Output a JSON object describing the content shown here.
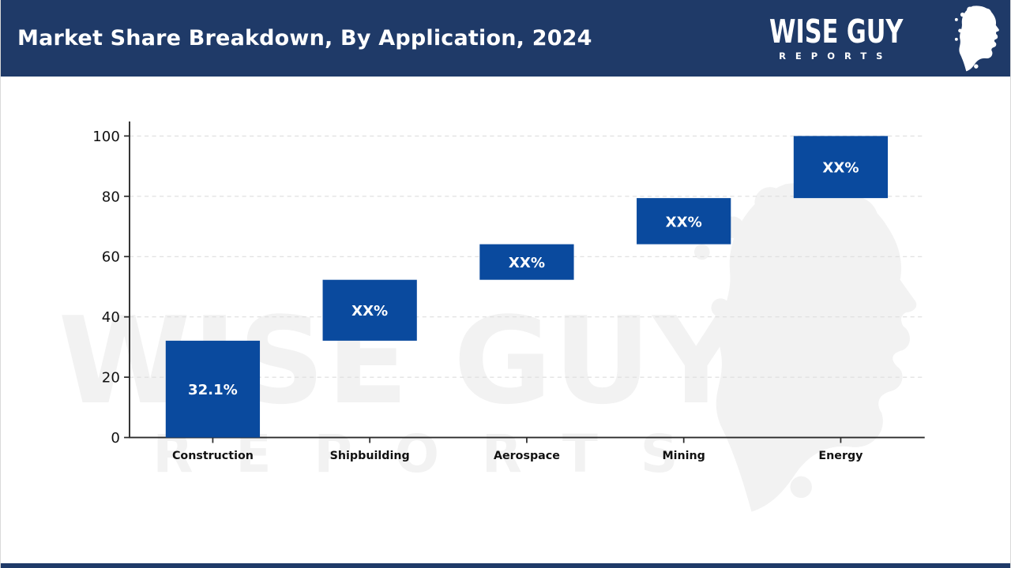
{
  "header": {
    "title": "Market Share Breakdown, By Application, 2024",
    "logo": {
      "line1": "WISE GUY",
      "line2": "REPORTS"
    }
  },
  "watermark": {
    "line1": "WISE GUY",
    "line2": "REPORTS"
  },
  "colors": {
    "header_bg": "#1f3a68",
    "footer_bg": "#1f3a68",
    "bar": "#0a4a9e",
    "bar_label": "#ffffff",
    "gridline": "#dedede",
    "axis": "#2b2b2b",
    "tick_text": "#111111",
    "watermark": "#f2f2f2"
  },
  "chart_data": {
    "type": "bar",
    "subtype": "waterfall",
    "title": "Market Share Breakdown, By Application, 2024",
    "xlabel": "",
    "ylabel": "",
    "categories": [
      "Construction",
      "Shipbuilding",
      "Aerospace",
      "Mining",
      "Energy"
    ],
    "segments": [
      {
        "category": "Construction",
        "start": 0,
        "end": 32.1,
        "value": 32.1,
        "label": "32.1%"
      },
      {
        "category": "Shipbuilding",
        "start": 32.1,
        "end": 52.3,
        "value": 20.2,
        "label": "XX%"
      },
      {
        "category": "Aerospace",
        "start": 52.3,
        "end": 64.1,
        "value": 11.8,
        "label": "XX%"
      },
      {
        "category": "Mining",
        "start": 64.1,
        "end": 79.4,
        "value": 15.3,
        "label": "XX%"
      },
      {
        "category": "Energy",
        "start": 79.4,
        "end": 100,
        "value": 20.6,
        "label": "XX%"
      }
    ],
    "yticks": [
      0,
      20,
      40,
      60,
      80,
      100
    ],
    "ylim": [
      0,
      104.8
    ],
    "grid": "horizontal dashed",
    "legend": "none"
  }
}
